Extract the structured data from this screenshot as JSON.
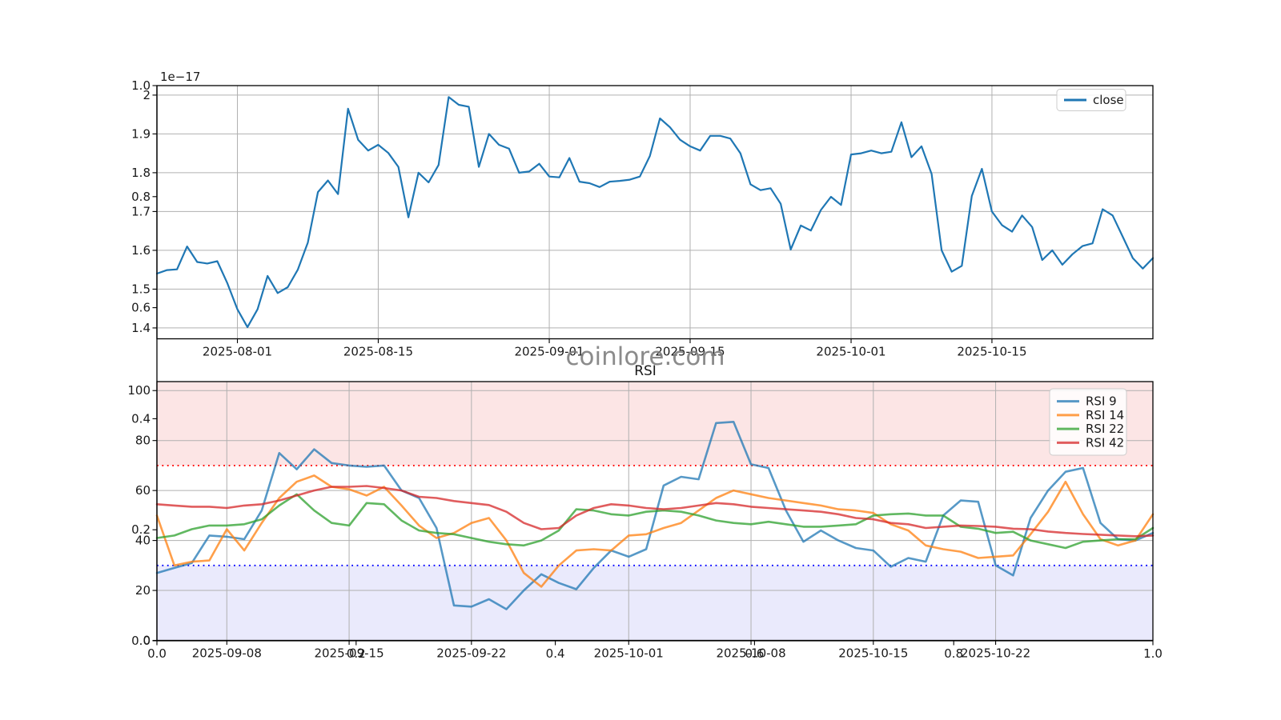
{
  "watermark": "coinlore.com",
  "rsi_title": "RSI",
  "colors": {
    "blue": "#1f77b4",
    "orange": "#ff7f0e",
    "green": "#2ca02c",
    "red": "#d62728",
    "grid": "#b0b0b0",
    "spine": "#000000",
    "overbought_line": "#ff0000",
    "oversold_line": "#0000ff",
    "overbought_fill": "rgba(235,80,80,0.15)",
    "oversold_fill": "rgba(105,105,235,0.14)",
    "legend_border": "#cccccc",
    "legend_fill": "rgba(255,255,255,0.85)"
  },
  "ghost_axis": {
    "yticks": [
      "1.0",
      "0.8",
      "0.6",
      "0.4",
      "0.2",
      "0.0"
    ],
    "xticks": [
      "0.0",
      "0.2",
      "0.4",
      "0.6",
      "0.8",
      "1.0"
    ]
  },
  "chart_data": [
    {
      "type": "line",
      "name": "price",
      "unit": "1e-17",
      "offset_text": "1e−17",
      "x_start_date": "2025-07-24",
      "x_end_date": "2025-10-31",
      "ylim": [
        1.372,
        2.0245
      ],
      "yticks": [
        2.0,
        1.9,
        1.8,
        1.7,
        1.6,
        1.5,
        1.4
      ],
      "xticks": [
        {
          "label": "2025-08-01",
          "index": 8
        },
        {
          "label": "2025-08-15",
          "index": 22
        },
        {
          "label": "2025-09-01",
          "index": 39
        },
        {
          "label": "2025-09-15",
          "index": 53
        },
        {
          "label": "2025-10-01",
          "index": 69
        },
        {
          "label": "2025-10-15",
          "index": 83
        }
      ],
      "legend_pos": "upper right",
      "series": [
        {
          "name": "close",
          "color": "blue",
          "opacity": 1,
          "width": 2.2,
          "values": [
            1.54,
            1.549,
            1.551,
            1.61,
            1.57,
            1.566,
            1.572,
            1.515,
            1.448,
            1.402,
            1.448,
            1.534,
            1.49,
            1.505,
            1.55,
            1.62,
            1.75,
            1.78,
            1.745,
            1.965,
            1.885,
            1.857,
            1.872,
            1.851,
            1.815,
            1.685,
            1.8,
            1.775,
            1.82,
            1.995,
            1.975,
            1.97,
            1.815,
            1.9,
            1.872,
            1.862,
            1.8,
            1.803,
            1.823,
            1.79,
            1.788,
            1.838,
            1.777,
            1.773,
            1.763,
            1.777,
            1.779,
            1.782,
            1.79,
            1.843,
            1.94,
            1.917,
            1.885,
            1.868,
            1.857,
            1.895,
            1.895,
            1.888,
            1.85,
            1.77,
            1.755,
            1.76,
            1.72,
            1.602,
            1.664,
            1.651,
            1.704,
            1.738,
            1.717,
            1.847,
            1.85,
            1.857,
            1.85,
            1.854,
            1.93,
            1.84,
            1.868,
            1.797,
            1.6,
            1.545,
            1.56,
            1.74,
            1.81,
            1.7,
            1.665,
            1.648,
            1.69,
            1.66,
            1.575,
            1.6,
            1.563,
            1.59,
            1.611,
            1.618,
            1.706,
            1.69,
            1.635,
            1.58,
            1.553,
            1.58
          ]
        }
      ]
    },
    {
      "type": "line",
      "name": "rsi",
      "title": "RSI",
      "x_start_date": "2025-09-04",
      "x_end_date": "2025-10-31",
      "ylim": [
        0,
        103.6
      ],
      "yticks": [
        100,
        80,
        60,
        40,
        20,
        0
      ],
      "overbought_level": 70,
      "oversold_level": 30,
      "xticks": [
        {
          "label": "2025-09-08",
          "index": 4
        },
        {
          "label": "2025-09-15",
          "index": 11
        },
        {
          "label": "2025-09-22",
          "index": 18
        },
        {
          "label": "2025-10-01",
          "index": 27
        },
        {
          "label": "2025-10-08",
          "index": 34
        },
        {
          "label": "2025-10-15",
          "index": 41
        },
        {
          "label": "2025-10-22",
          "index": 48
        }
      ],
      "legend_pos": "upper right",
      "series": [
        {
          "name": "RSI 9",
          "color": "blue",
          "opacity": 0.75,
          "width": 2.6,
          "values": [
            27,
            29,
            31,
            42,
            41.5,
            40.5,
            52,
            75,
            68.5,
            76.5,
            71,
            70,
            69.5,
            70,
            60,
            57,
            45,
            14,
            13.5,
            16.5,
            12.5,
            20,
            26.5,
            23,
            20.5,
            29,
            36,
            33.5,
            36.5,
            62,
            65.5,
            64.5,
            87,
            87.5,
            70.5,
            69,
            52,
            39.5,
            44,
            40,
            37,
            36,
            29.5,
            33,
            31.5,
            50,
            56,
            55.5,
            30,
            26,
            49,
            60,
            67.5,
            69,
            47,
            40.5,
            40,
            43
          ]
        },
        {
          "name": "RSI 14",
          "color": "orange",
          "opacity": 0.75,
          "width": 2.6,
          "values": [
            50,
            30,
            31.5,
            32,
            44.5,
            36,
            47,
            57,
            63.5,
            66,
            61.5,
            60.5,
            58,
            61.5,
            54,
            46,
            41,
            43,
            47,
            49,
            40,
            27,
            21.5,
            30,
            36,
            36.5,
            36,
            42,
            42.5,
            45,
            47,
            52,
            57,
            60,
            58.5,
            57,
            56,
            55,
            54,
            52.5,
            52,
            51,
            46.5,
            44,
            38,
            36.5,
            35.5,
            33,
            33.5,
            34,
            42.5,
            51.5,
            63.5,
            50.5,
            40.5,
            38,
            40,
            50.5
          ]
        },
        {
          "name": "RSI 22",
          "color": "green",
          "opacity": 0.75,
          "width": 2.6,
          "values": [
            41,
            42,
            44.5,
            46,
            46,
            46.5,
            48.5,
            54,
            58.5,
            52,
            47,
            46,
            55,
            54.5,
            48,
            44,
            43,
            42.5,
            41,
            39.5,
            38.5,
            38,
            40,
            44,
            52.5,
            52,
            50.5,
            50,
            51.5,
            52,
            51.5,
            50,
            48,
            47,
            46.5,
            47.5,
            46.5,
            45.5,
            45.5,
            46,
            46.5,
            50,
            50.5,
            50.8,
            50,
            50,
            45.5,
            44.7,
            43,
            43.5,
            40,
            38.5,
            37,
            39.5,
            40,
            40.5,
            40.5,
            45
          ]
        },
        {
          "name": "RSI 42",
          "color": "red",
          "opacity": 0.75,
          "width": 2.6,
          "values": [
            54.5,
            54,
            53.5,
            53.5,
            53,
            54,
            54.5,
            56,
            58,
            60,
            61.5,
            61.5,
            61.8,
            61,
            60,
            57.5,
            57,
            55.8,
            55,
            54.2,
            51.5,
            47,
            44.5,
            45,
            50,
            53,
            54.5,
            54,
            53,
            52.5,
            53,
            54,
            55,
            54.5,
            53.5,
            53,
            52.5,
            52,
            51.5,
            50.5,
            49,
            48.5,
            47,
            46.5,
            45,
            45.5,
            46,
            45.8,
            45.5,
            44.7,
            44.5,
            43.6,
            43,
            42.6,
            42.3,
            42,
            41.7,
            42
          ]
        }
      ]
    }
  ]
}
